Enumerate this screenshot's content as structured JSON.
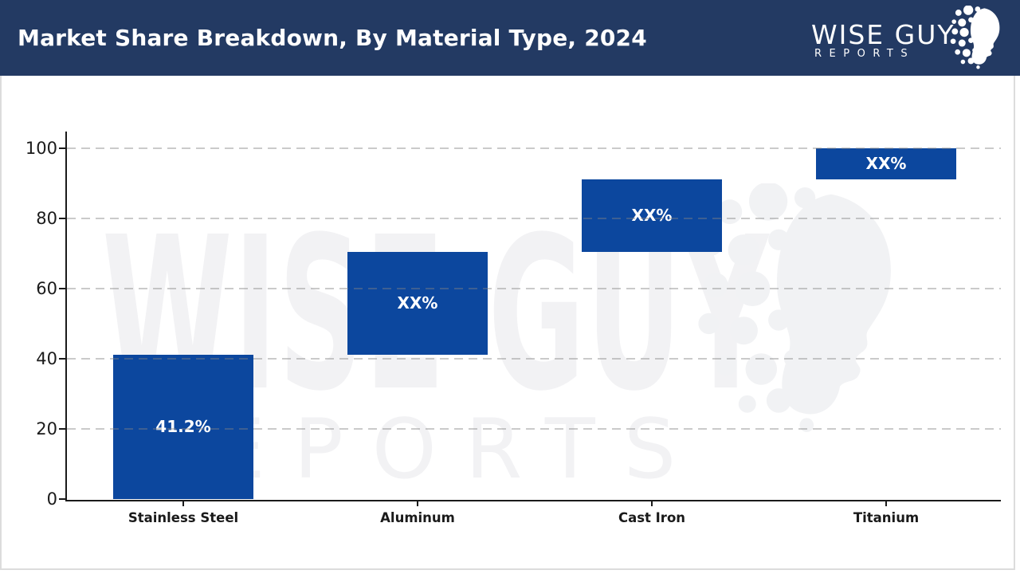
{
  "header": {
    "title": "Market Share Breakdown, By Material Type, 2024",
    "bg_color": "#233a63",
    "logo": {
      "line1": "WISE GUY",
      "line2": "REPORTS",
      "head_icon": "dotted-head-profile"
    }
  },
  "watermark": {
    "line1": "WISE GUY",
    "line2": "REPORTS",
    "head_icon": "dotted-head-profile"
  },
  "chart_data": {
    "type": "bar",
    "subtype": "floating-waterfall",
    "title": "Market Share Breakdown, By Material Type, 2024",
    "categories": [
      "Stainless Steel",
      "Aluminum",
      "Cast Iron",
      "Titanium"
    ],
    "series": [
      {
        "name": "Market share (%)",
        "segments": [
          {
            "category": "Stainless Steel",
            "from": 0,
            "to": 41.2,
            "label": "41.2%"
          },
          {
            "category": "Aluminum",
            "from": 41.2,
            "to": 70.5,
            "label": "XX%"
          },
          {
            "category": "Cast Iron",
            "from": 70.5,
            "to": 91.2,
            "label": "XX%"
          },
          {
            "category": "Titanium",
            "from": 91.2,
            "to": 100,
            "label": "XX%"
          }
        ]
      }
    ],
    "ylim": [
      0,
      100
    ],
    "yticks": [
      0,
      20,
      40,
      60,
      80,
      100
    ],
    "xlabel": "",
    "ylabel": "",
    "grid": "horizontal-dashed-over-bars",
    "legend": "none",
    "bar_color": "#0c479e",
    "bar_label_color": "#ffffff",
    "axis_color": "#1a1a1a"
  }
}
